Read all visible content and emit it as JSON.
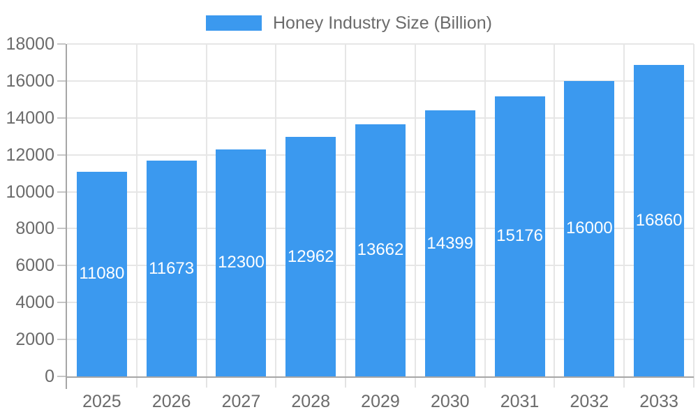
{
  "legend": {
    "label": "Honey Industry Size (Billion)"
  },
  "chart_data": {
    "type": "bar",
    "title": "Honey Industry Size (Billion)",
    "series_name": "Honey Industry Size (Billion)",
    "categories": [
      "2025",
      "2026",
      "2027",
      "2028",
      "2029",
      "2030",
      "2031",
      "2032",
      "2033"
    ],
    "values": [
      11080,
      11673,
      12300,
      12962,
      13662,
      14399,
      15176,
      16000,
      16860
    ],
    "xlabel": "",
    "ylabel": "",
    "ylim": [
      0,
      18000
    ],
    "yticks": [
      0,
      2000,
      4000,
      6000,
      8000,
      10000,
      12000,
      14000,
      16000,
      18000
    ],
    "grid": true,
    "legend_position": "top",
    "value_labels": "inside-center-white",
    "bar_color": "#3B99EF",
    "value_label_color": "#FFFFFF",
    "axis_label_color": "#6B6B6B",
    "grid_color": "#E6E6E6",
    "axis_line_color": "#A6A6A6"
  }
}
